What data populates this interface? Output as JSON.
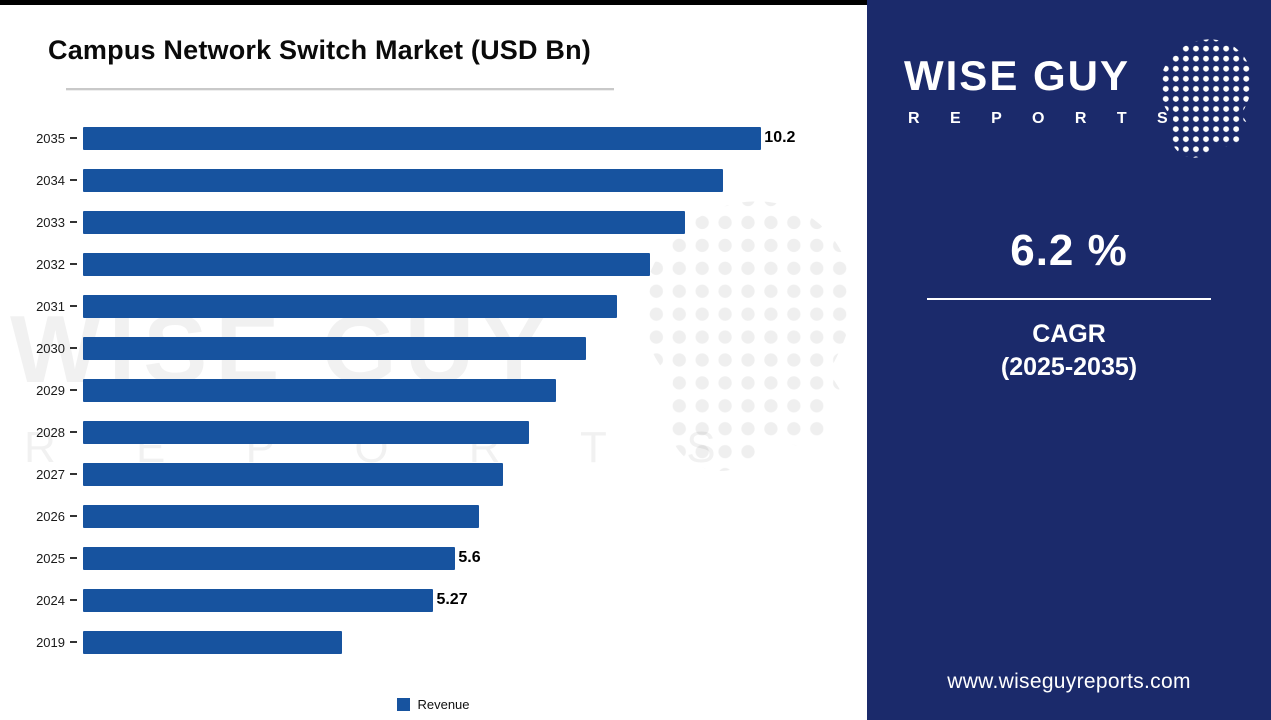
{
  "title": "Campus Network Switch Market (USD Bn)",
  "chart_data": {
    "type": "bar",
    "orientation": "horizontal",
    "title": "Campus Network Switch Market (USD Bn)",
    "categories": [
      "2035",
      "2034",
      "2033",
      "2032",
      "2031",
      "2030",
      "2029",
      "2028",
      "2027",
      "2026",
      "2025",
      "2024",
      "2019"
    ],
    "values": [
      10.2,
      9.62,
      9.06,
      8.53,
      8.03,
      7.56,
      7.12,
      6.71,
      6.31,
      5.95,
      5.6,
      5.27,
      3.9
    ],
    "value_labels": {
      "2035": "10.2",
      "2025": "5.6",
      "2024": "5.27"
    },
    "xlim": [
      0,
      10.8
    ],
    "bar_color": "#17539f",
    "legend": [
      {
        "label": "Revenue",
        "color": "#17539f"
      }
    ],
    "legend_position": "bottom-center",
    "grid": false
  },
  "watermark": {
    "line1": "WISE GUY",
    "line2": "R E P O R T S"
  },
  "sidebar": {
    "bg_color": "#1b2a6b",
    "logo_line1": "WISE GUY",
    "logo_line2": "R E P O R T S",
    "cagr_value": "6.2 %",
    "cagr_label": "CAGR",
    "cagr_period": "(2025-2035)",
    "website": "www.wiseguyreports.com"
  }
}
